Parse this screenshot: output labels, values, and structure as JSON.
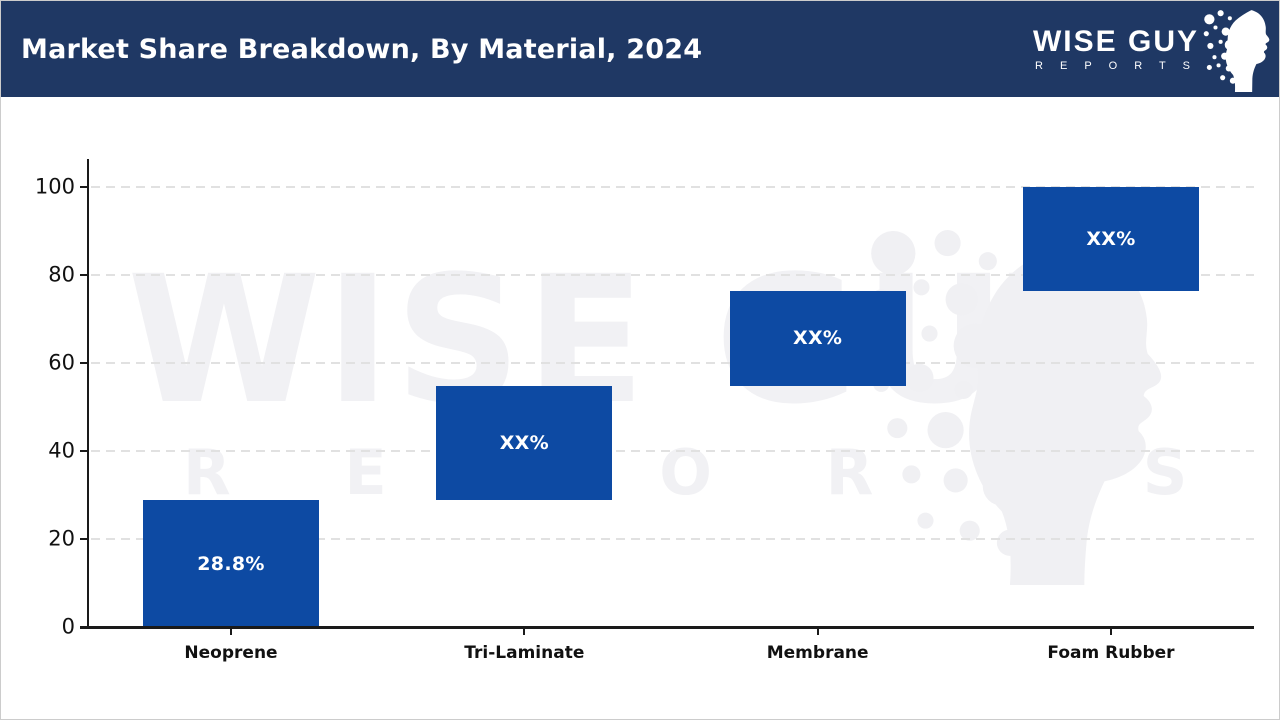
{
  "header": {
    "title": "Market Share Breakdown, By Material, 2024",
    "logo": {
      "line1": "WISE GUY",
      "line2": "R E P O R T S"
    }
  },
  "watermark": {
    "line1": "WISE GUY",
    "line2": "R E P O R T S"
  },
  "chart_data": {
    "type": "bar",
    "subtype": "waterfall",
    "title": "Market Share Breakdown, By Material, 2024",
    "categories": [
      "Neoprene",
      "Tri-Laminate",
      "Membrane",
      "Foam Rubber"
    ],
    "series": [
      {
        "category": "Neoprene",
        "start": 0,
        "end": 28.8,
        "label": "28.8%"
      },
      {
        "category": "Tri-Laminate",
        "start": 28.8,
        "end": 54.8,
        "label": "XX%"
      },
      {
        "category": "Membrane",
        "start": 54.8,
        "end": 76.4,
        "label": "XX%"
      },
      {
        "category": "Foam Rubber",
        "start": 76.4,
        "end": 100,
        "label": "XX%"
      }
    ],
    "xlabel": "",
    "ylabel": "",
    "ylim": [
      0,
      105
    ],
    "yticks": [
      0,
      20,
      40,
      60,
      80,
      100
    ],
    "grid": "horizontal-dashed",
    "legend": "none",
    "bar_color": "#0d4aa3",
    "bar_label_color": "#ffffff"
  },
  "colors": {
    "header_bg": "#1f3864",
    "bar": "#0d4aa3",
    "grid": "#e1e1e1",
    "axis": "#1a1a1a",
    "watermark": "#f0f0f3",
    "page_bg": "#ffffff"
  }
}
